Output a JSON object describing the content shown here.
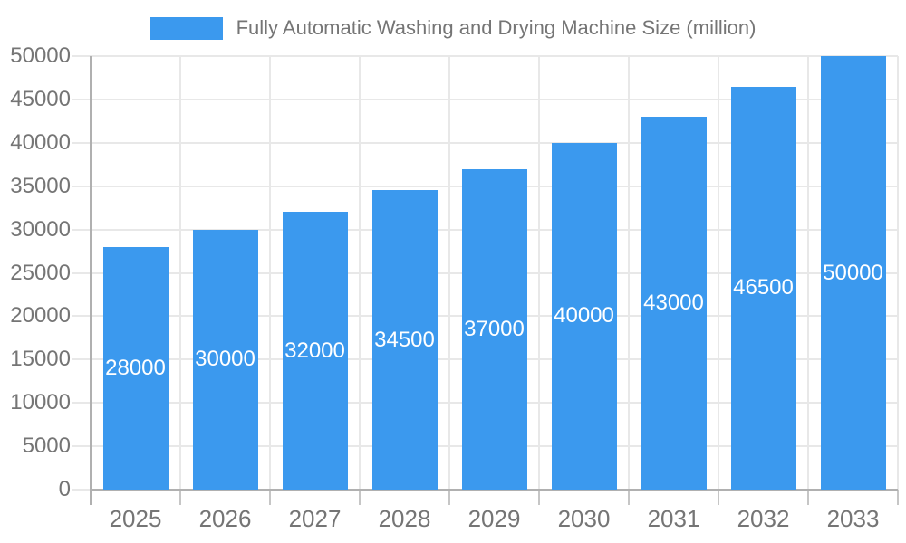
{
  "legend": {
    "label": "Fully Automatic Washing and Drying Machine Size (million)"
  },
  "colors": {
    "bar": "#3b99ee",
    "axis_line": "#b0b0b0",
    "grid_line": "#e8e8e8",
    "tick_line": "#c6c6c6",
    "axis_text": "#757575",
    "bar_label_text": "#ffffff",
    "background": "#ffffff"
  },
  "chart_data": {
    "type": "bar",
    "title": "Fully Automatic Washing and Drying Machine Size (million)",
    "categories": [
      "2025",
      "2026",
      "2027",
      "2028",
      "2029",
      "2030",
      "2031",
      "2032",
      "2033"
    ],
    "series": [
      {
        "name": "Fully Automatic Washing and Drying Machine Size (million)",
        "values": [
          28000,
          30000,
          32000,
          34500,
          37000,
          40000,
          43000,
          46500,
          50000
        ]
      }
    ],
    "bar_value_labels": [
      "28000",
      "30000",
      "32000",
      "34500",
      "37000",
      "40000",
      "43000",
      "46500",
      "50000"
    ],
    "xlabel": "",
    "ylabel": "",
    "ylim": [
      0,
      50000
    ],
    "y_ticks": [
      0,
      5000,
      10000,
      15000,
      20000,
      25000,
      30000,
      35000,
      40000,
      45000,
      50000
    ],
    "y_tick_labels": [
      "0",
      "5000",
      "10000",
      "15000",
      "20000",
      "25000",
      "30000",
      "35000",
      "40000",
      "45000",
      "50000"
    ],
    "grid": true,
    "legend_position": "top",
    "bar_label_position": "inside-middle"
  }
}
